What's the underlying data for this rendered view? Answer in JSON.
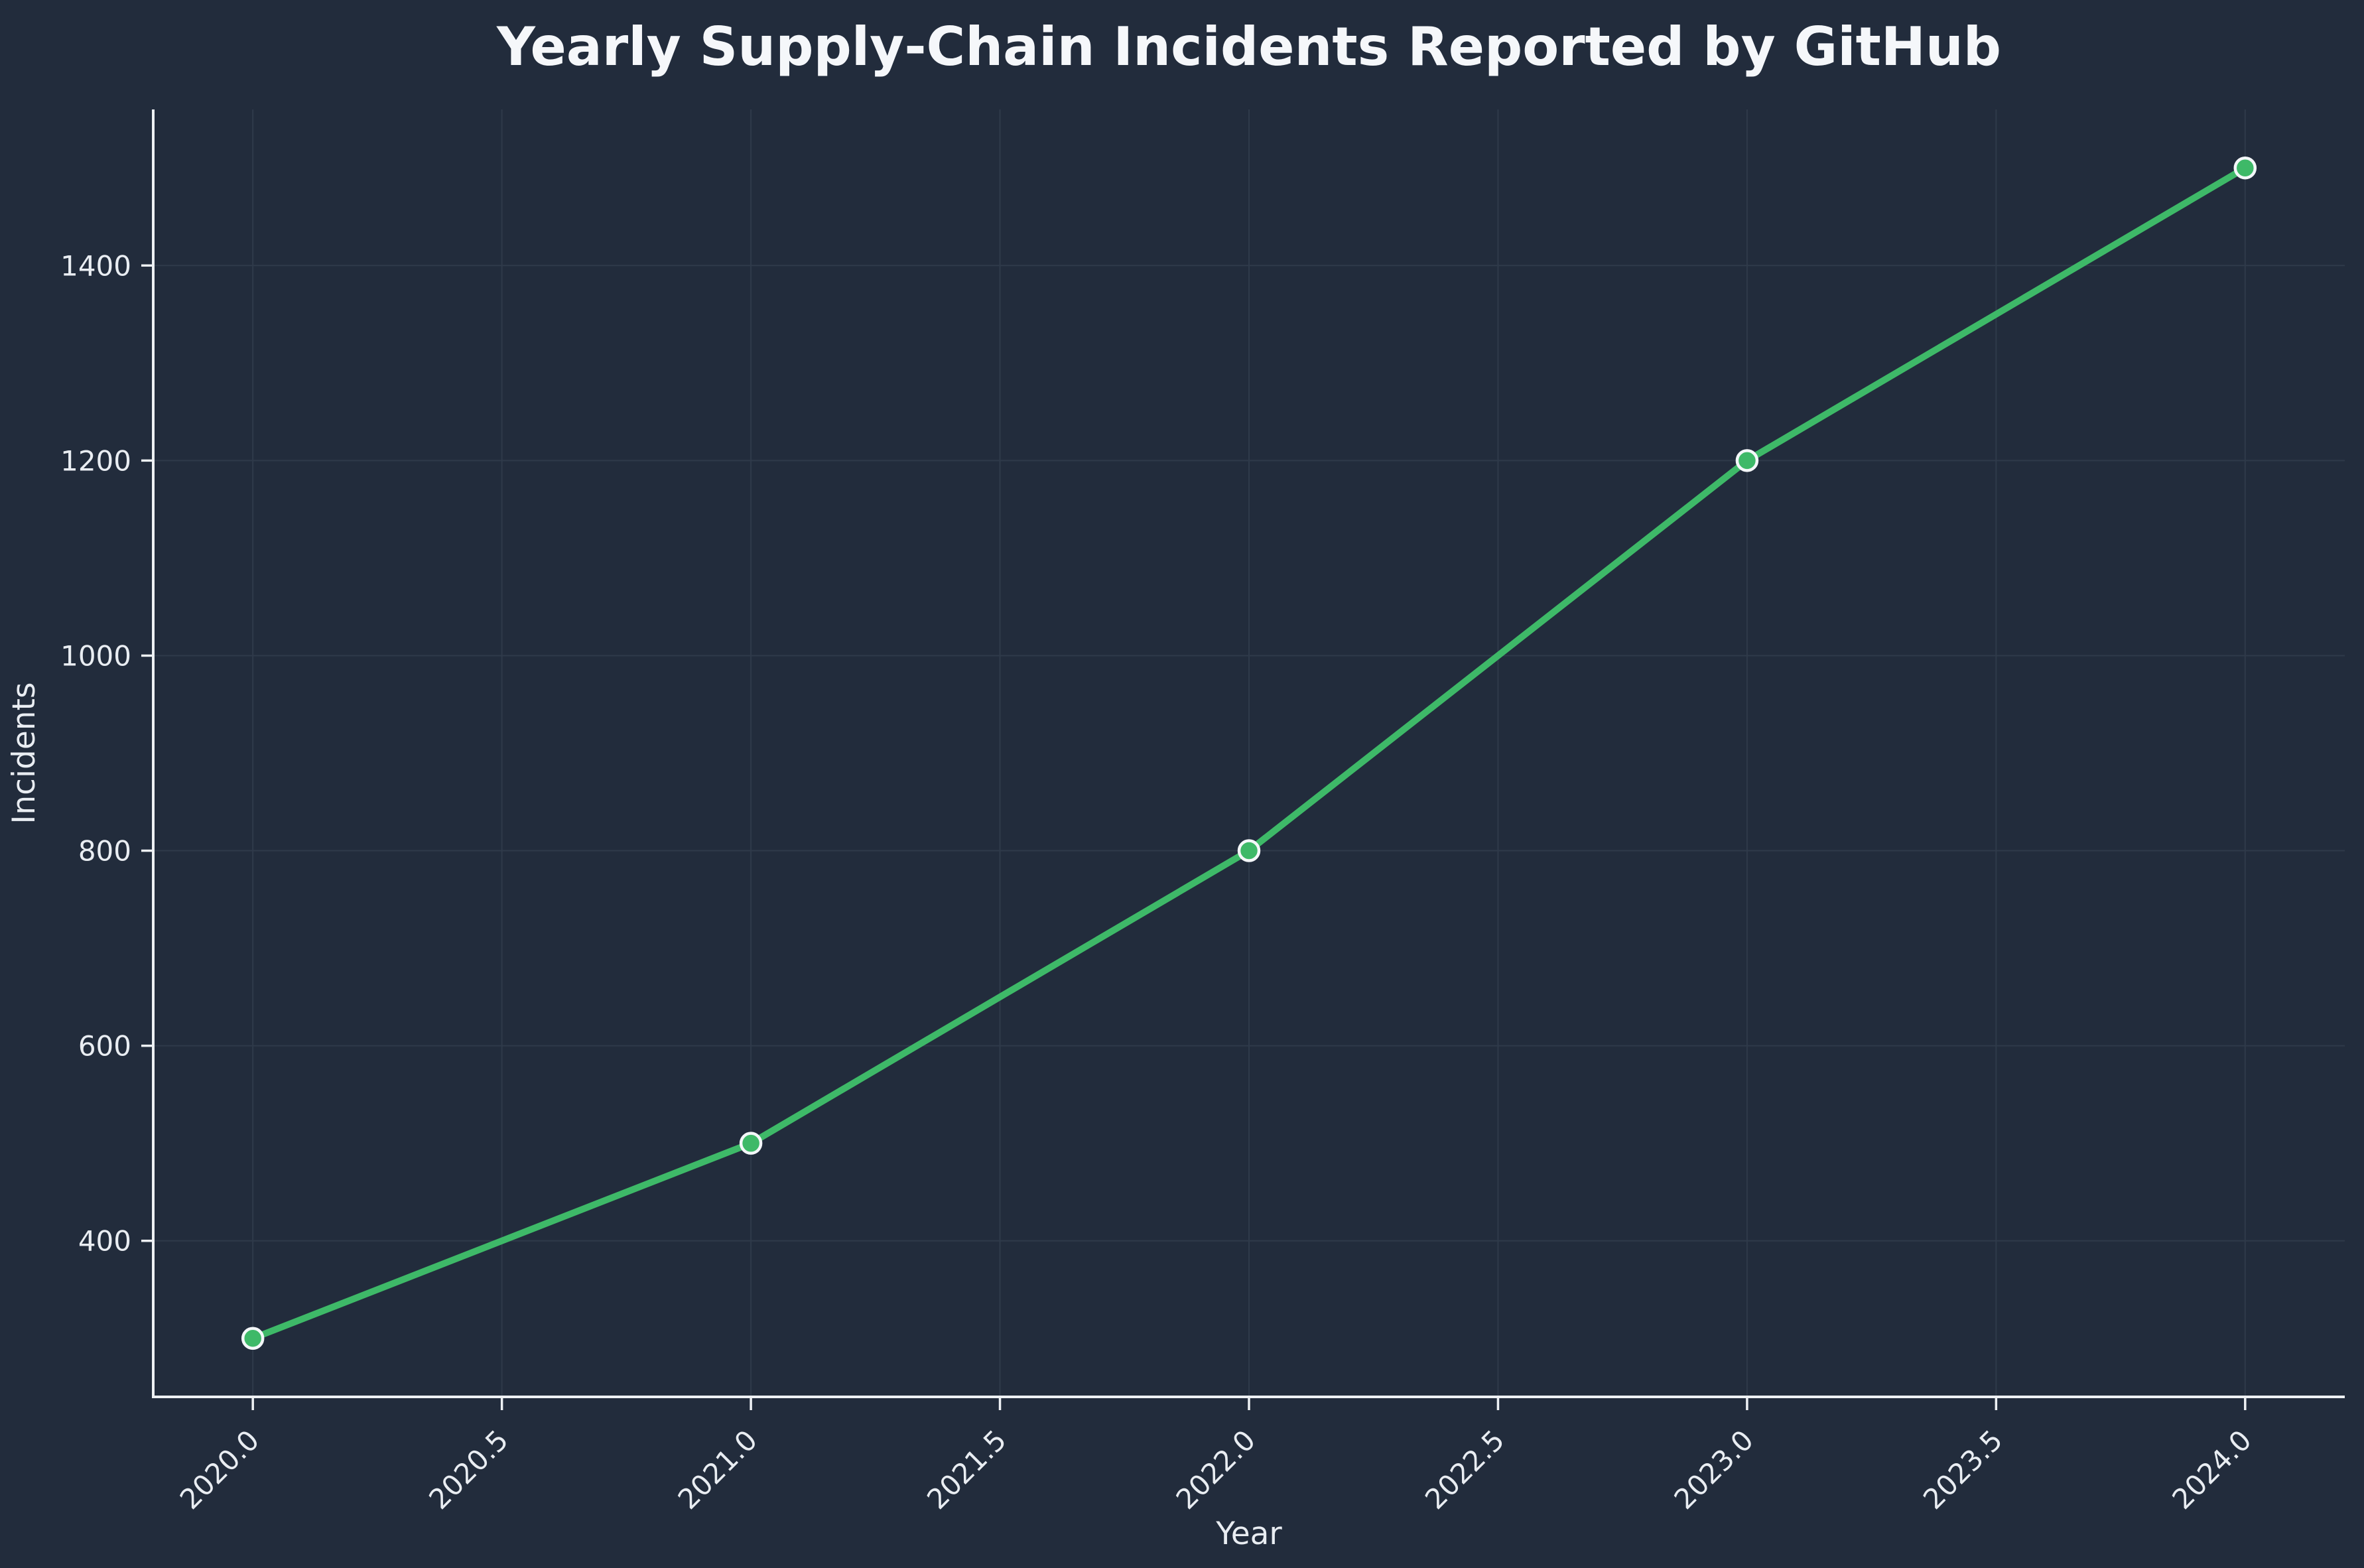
{
  "chart_data": {
    "type": "line",
    "title": "Yearly Supply-Chain Incidents Reported by GitHub",
    "xlabel": "Year",
    "ylabel": "Incidents",
    "series": [
      {
        "name": "Incidents",
        "x": [
          2020,
          2021,
          2022,
          2023,
          2024
        ],
        "y": [
          300,
          500,
          800,
          1200,
          1500
        ]
      }
    ],
    "xlim": [
      2019.8,
      2024.2
    ],
    "ylim": [
      240,
      1560
    ],
    "xticks": {
      "values": [
        2020.0,
        2020.5,
        2021.0,
        2021.5,
        2022.0,
        2022.5,
        2023.0,
        2023.5,
        2024.0
      ],
      "labels": [
        "2020.0",
        "2020.5",
        "2021.0",
        "2021.5",
        "2022.0",
        "2022.5",
        "2023.0",
        "2023.5",
        "2024.0"
      ],
      "rotation_deg": 45
    },
    "yticks": {
      "values": [
        400,
        600,
        800,
        1000,
        1200,
        1400
      ],
      "labels": [
        "400",
        "600",
        "800",
        "1000",
        "1200",
        "1400"
      ]
    },
    "grid": true,
    "legend": false,
    "marker": "circle",
    "colors": {
      "background": "#222c3c",
      "line": "#3eb968",
      "marker_fill": "#3eb968",
      "marker_edge": "#f4f7f9",
      "grid": "#2f3a4a",
      "spine": "#eef1f4",
      "tick_label": "#e9edf2",
      "title": "#f5f7fa"
    }
  }
}
